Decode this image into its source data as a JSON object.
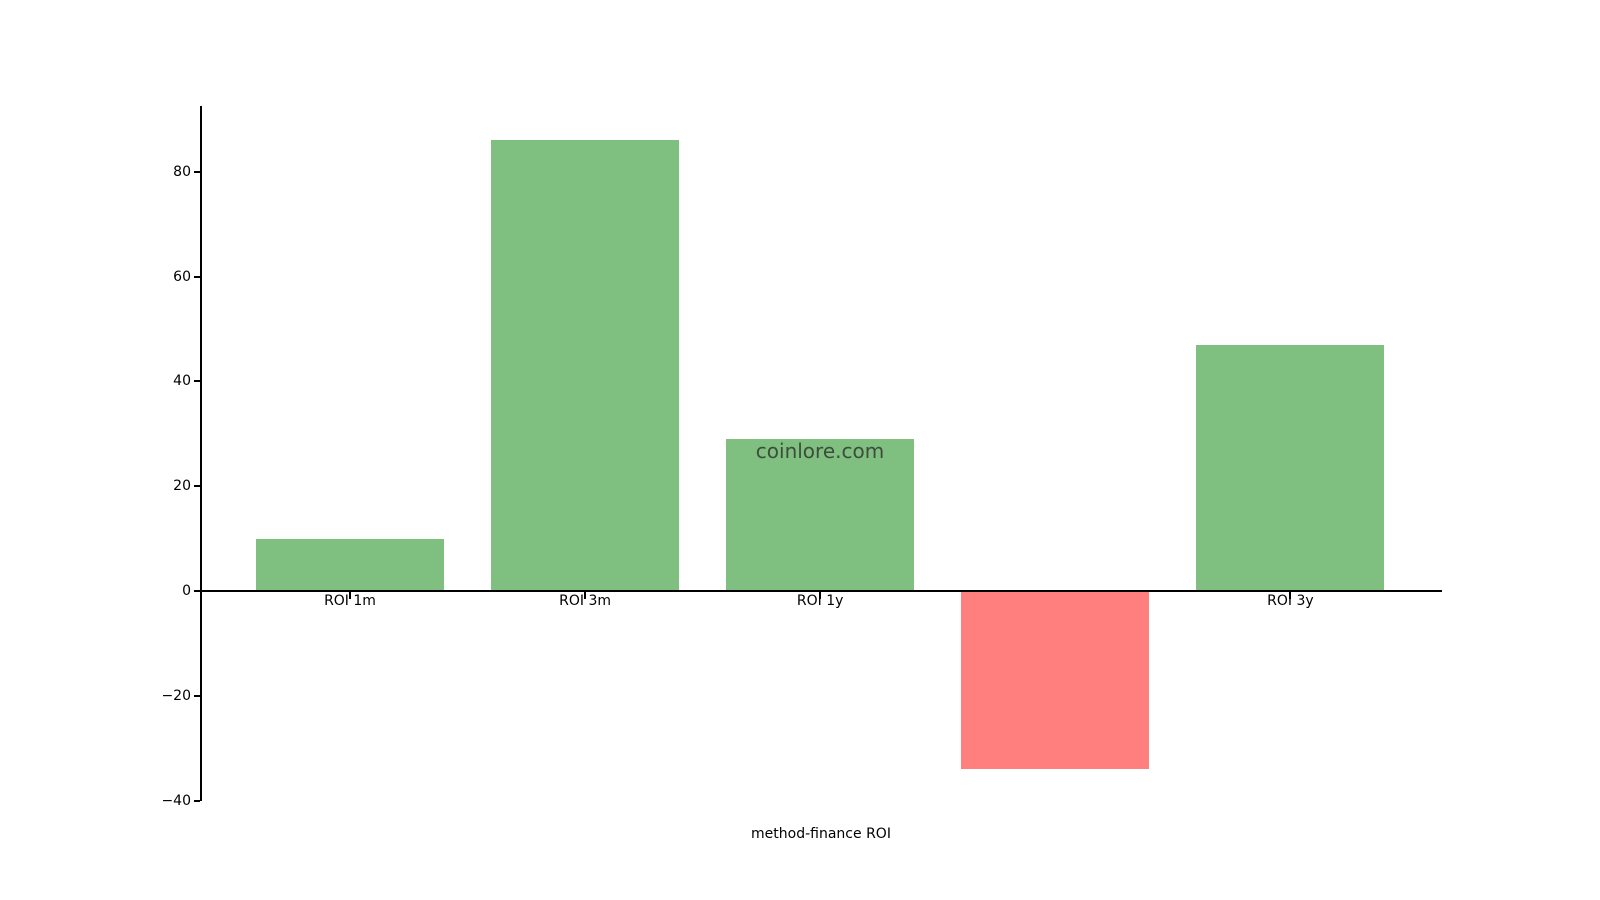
{
  "chart_data": {
    "type": "bar",
    "title": "",
    "xlabel": "method-finance ROI",
    "ylabel": "",
    "categories": [
      "ROI 1m",
      "ROI 3m",
      "ROI 1y",
      "",
      "ROI 3y"
    ],
    "values": [
      10,
      86,
      29,
      -34,
      47
    ],
    "positive_color": "#7fbf7f",
    "negative_color": "#ff7f7f",
    "ylim": [
      -40,
      92.5
    ],
    "yticks": [
      80,
      60,
      40,
      20,
      0,
      -20,
      -40
    ],
    "ytick_labels": [
      "80",
      "60",
      "40",
      "20",
      "0",
      "−20",
      "−40"
    ],
    "grid": false,
    "legend": false,
    "axis_color": "#000000"
  },
  "watermark": {
    "text": "coinlore.com",
    "color": "#3d4d3d"
  }
}
